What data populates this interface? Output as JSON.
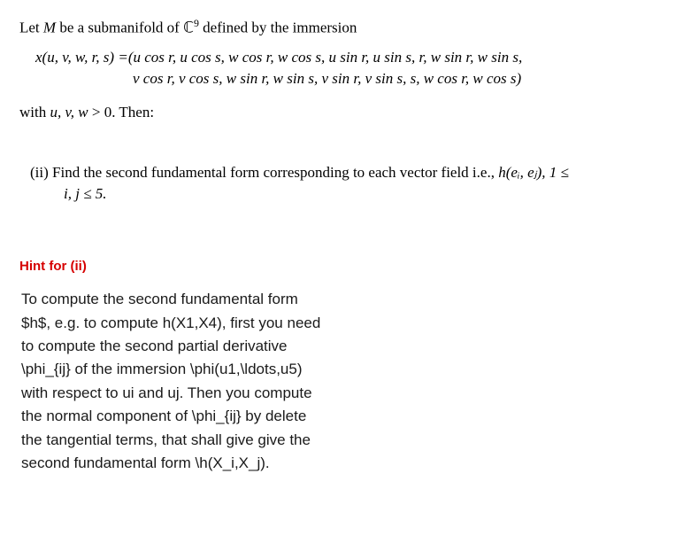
{
  "intro": {
    "prefix": "Let ",
    "M": "M",
    "mid1": " be a submanifold of ",
    "C": "ℂ",
    "exp": "9",
    "mid2": " defined by the immersion"
  },
  "eq": {
    "lhs": "x(u, v, w, r, s) =",
    "rhs1": "(u cos r,  u cos s,  w cos r,  w cos s,  u sin r,  u sin s,  r,  w sin r,  w sin s,",
    "rhs2": "v cos r,  v cos s,  w sin r,  w sin s,  v sin r,  v sin s,  s,  w cos r,  w cos s)"
  },
  "with": {
    "prefix": "with ",
    "vars": "u, v, w",
    "cond": " > 0.  Then:"
  },
  "part2": {
    "label": "(ii)  ",
    "text1": "Find the second fundamental form corresponding to each vector field i.e., ",
    "hform": "h(eᵢ, eⱼ),  1 ≤",
    "line2": "i, j ≤ 5."
  },
  "hint": {
    "header": "Hint for (ii)",
    "body": "To compute the second fundamental form $h$, e.g. to compute h(X1,X4), first you need to compute the second partial derivative \\phi_{ij} of the immersion \\phi(u1,\\ldots,u5) with respect to ui and uj. Then you compute the normal component of \\phi_{ij} by delete the tangential terms, that shall give give the second fundamental form \\h(X_i,X_j)."
  }
}
